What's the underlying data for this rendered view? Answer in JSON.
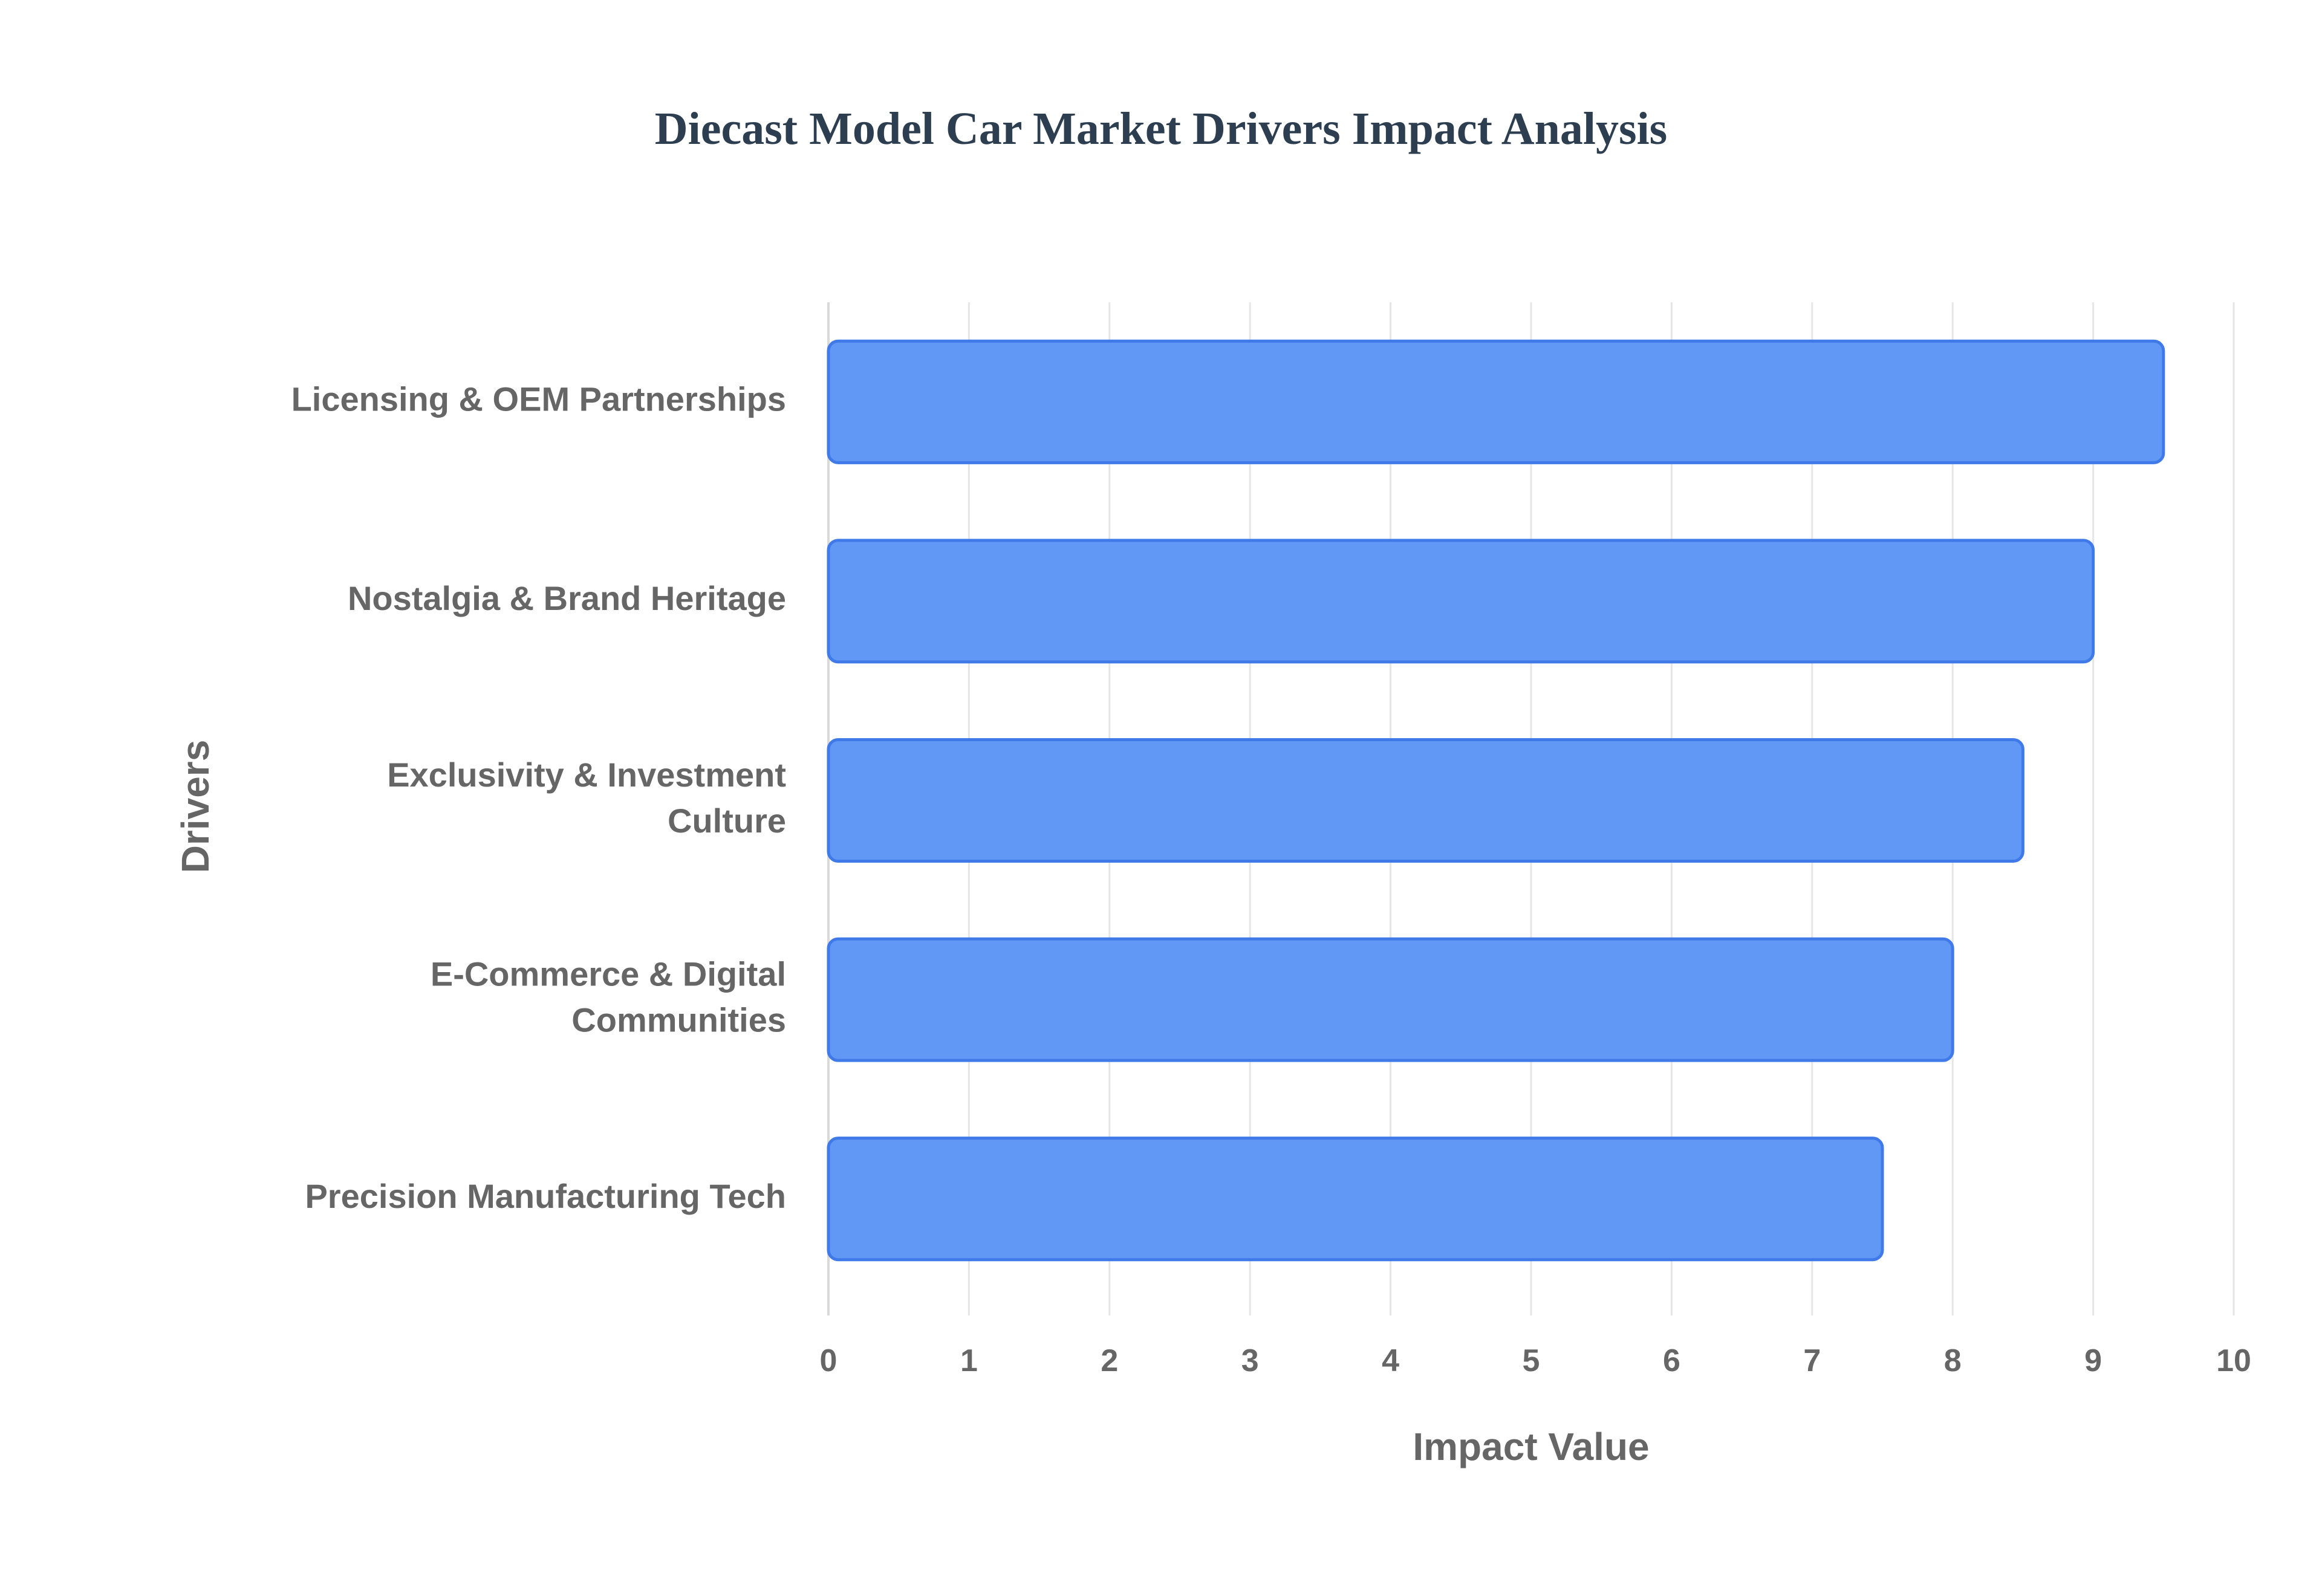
{
  "chart_data": {
    "type": "bar",
    "orientation": "horizontal",
    "title": "Diecast Model Car Market Drivers Impact Analysis",
    "xlabel": "Impact Value",
    "ylabel": "Drivers",
    "xlim": [
      0,
      10
    ],
    "x_ticks": [
      "0",
      "1",
      "2",
      "3",
      "4",
      "5",
      "6",
      "7",
      "8",
      "9",
      "10"
    ],
    "categories": [
      "Licensing & OEM Partnerships",
      "Nostalgia & Brand Heritage",
      "Exclusivity & Investment Culture",
      "E-Commerce & Digital Communities",
      "Precision Manufacturing Tech"
    ],
    "category_lines": [
      [
        "Licensing & OEM Partnerships"
      ],
      [
        "Nostalgia & Brand Heritage"
      ],
      [
        "Exclusivity & Investment",
        "Culture"
      ],
      [
        "E-Commerce & Digital",
        "Communities"
      ],
      [
        "Precision Manufacturing Tech"
      ]
    ],
    "values": [
      9.5,
      9.0,
      8.5,
      8.0,
      7.5
    ],
    "grid": true,
    "legend": "none",
    "colors": {
      "bar_fill": "#6198f5",
      "bar_stroke": "#3f7ae8",
      "grid": "#e6e6e6",
      "axis_text": "#666666",
      "title": "#2c3e50"
    }
  }
}
